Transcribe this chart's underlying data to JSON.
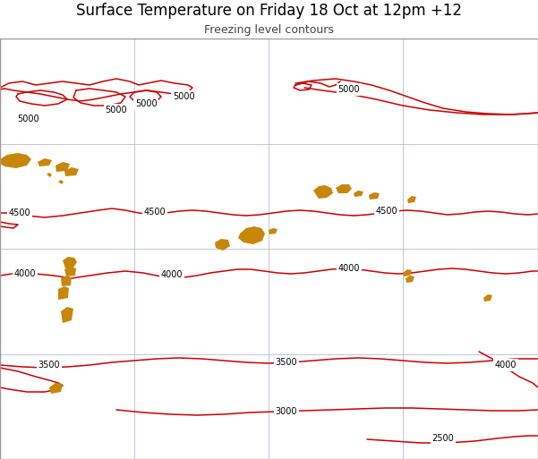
{
  "title": "Surface Temperature on Friday 18 Oct at 12pm +12",
  "subtitle": "Freezing level contours",
  "title_fontsize": 12,
  "subtitle_fontsize": 9,
  "bg_map_color": "#cdd1e8",
  "bg_header_color": "#ffffff",
  "contour_color": "#cc0000",
  "label_fontsize": 7,
  "grid_color": "#b0b4cc",
  "border_color": "#888888",
  "fig_width": 6.01,
  "fig_height": 5.13,
  "dpi": 100
}
